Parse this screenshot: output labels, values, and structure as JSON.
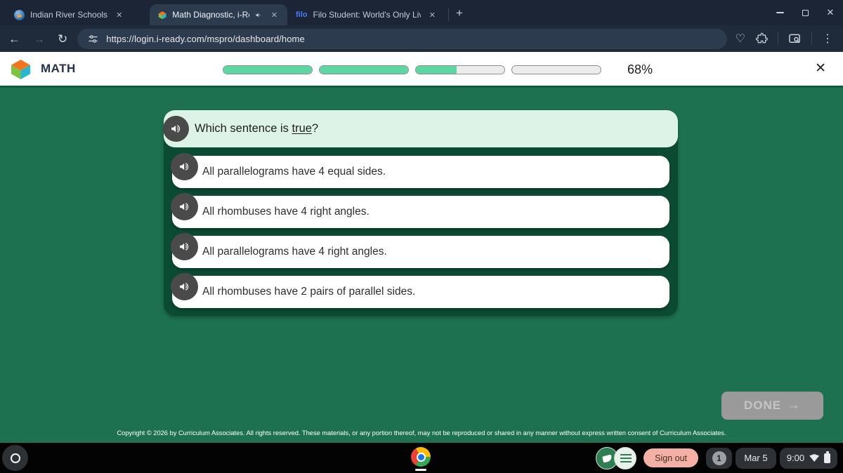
{
  "browser": {
    "tabs": [
      {
        "title": "Indian River Schools"
      },
      {
        "title": "Math Diagnostic, i-Ready"
      },
      {
        "title": "Filo Student: World's Only Live"
      }
    ],
    "url": "https://login.i-ready.com/mspro/dashboard/home"
  },
  "icons": {
    "tab_close": "✕",
    "new_tab": "+",
    "back": "←",
    "forward": "→",
    "reload": "↻",
    "heart": "♡",
    "kebab": "⋮",
    "window_close": "✕",
    "header_close": "✕",
    "done_arrow": "→"
  },
  "header": {
    "subject": "MATH",
    "progress_percent_label": "68%",
    "progress_segments": [
      {
        "fill": 100
      },
      {
        "fill": 100
      },
      {
        "fill": 46
      },
      {
        "fill": 0
      }
    ]
  },
  "question": {
    "prompt_prefix": "Which sentence is ",
    "prompt_underlined": "true",
    "prompt_suffix": "?",
    "options": [
      {
        "text": "All parallelograms have 4 equal sides."
      },
      {
        "text": "All rhombuses have 4 right angles."
      },
      {
        "text": "All parallelograms have 4 right angles."
      },
      {
        "text": "All rhombuses have 2 pairs of parallel sides."
      }
    ]
  },
  "footer": {
    "done_label": "DONE",
    "copyright": "Copyright © 2026 by Curriculum Associates. All rights reserved. These materials, or any portion thereof, may not be reproduced or shared in any manner without express written consent of Curriculum Associates."
  },
  "shelf": {
    "sign_out_label": "Sign out",
    "notification_count": "1",
    "date": "Mar 5",
    "time": "9:00"
  },
  "colors": {
    "page_green": "#1D7151",
    "panel_green": "#0B4A33",
    "bubble_mint": "#DDF3E7",
    "progress_green": "#5CD6A2",
    "signout_salmon": "#F4B0A4",
    "done_gray": "#9A9A9A"
  }
}
